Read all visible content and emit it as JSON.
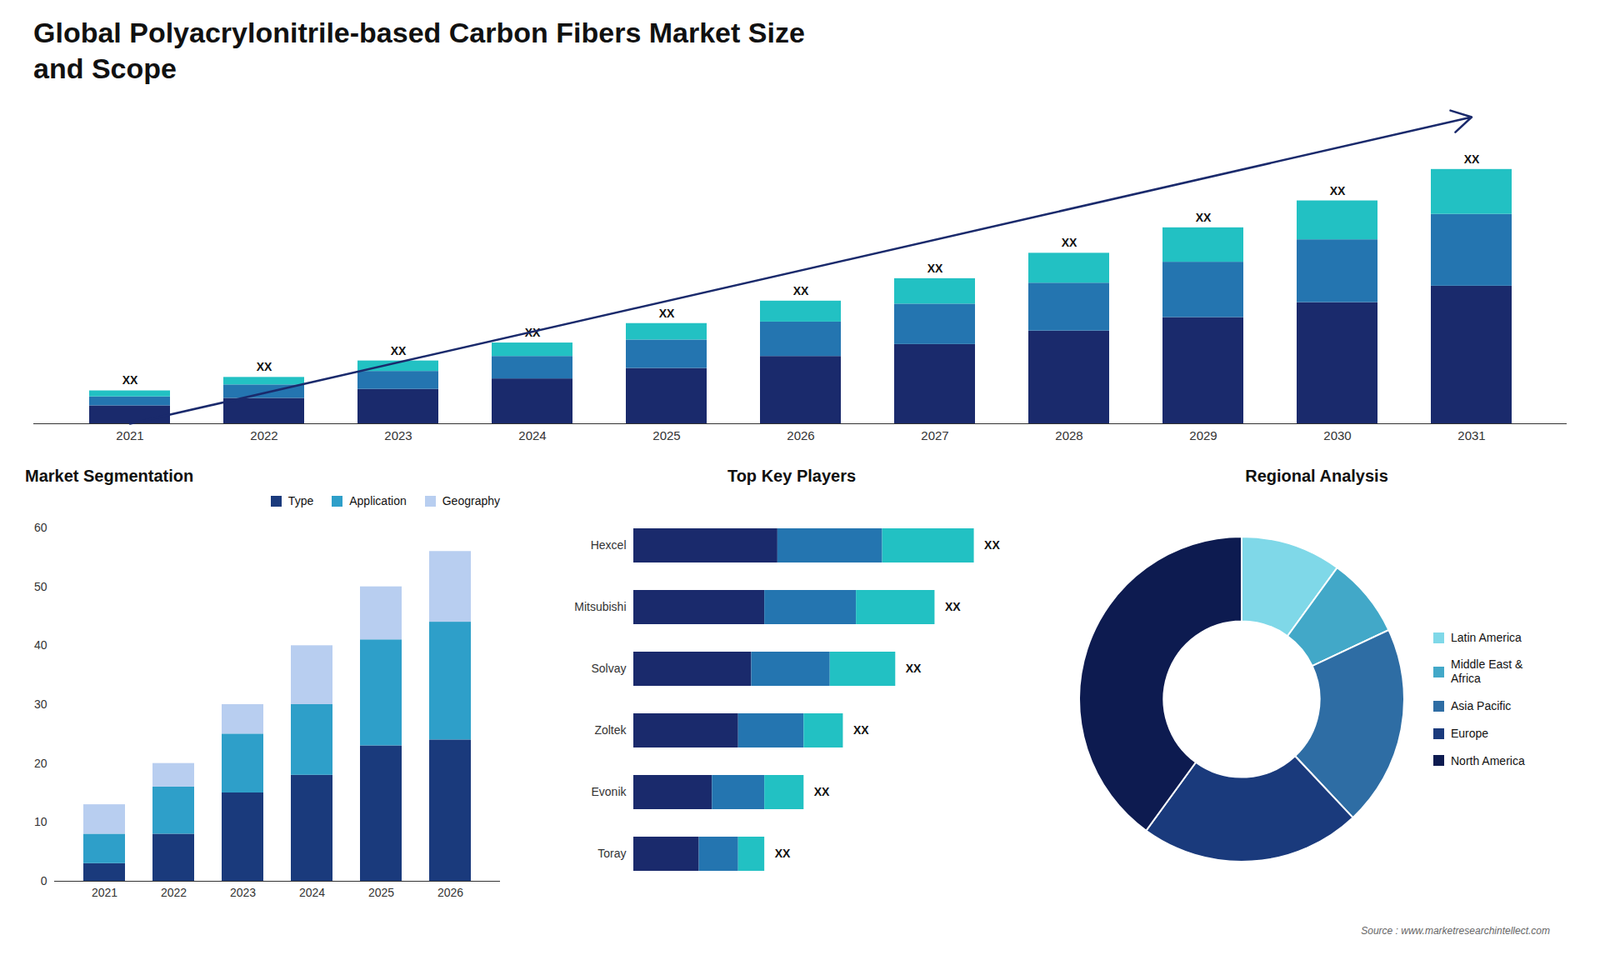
{
  "chart_data": [
    {
      "type": "bar",
      "title": "Global Polyacrylonitrile-based Carbon Fibers Market Size\nand Scope",
      "stacked": true,
      "categories": [
        "2021",
        "2022",
        "2023",
        "2024",
        "2025",
        "2026",
        "2027",
        "2028",
        "2029",
        "2030",
        "2031"
      ],
      "series": [
        {
          "color": "#1a2a6c",
          "values": [
            1.2,
            1.7,
            2.3,
            3.0,
            3.7,
            4.5,
            5.3,
            6.2,
            7.1,
            8.1,
            9.2
          ]
        },
        {
          "color": "#2475b0",
          "values": [
            0.6,
            0.9,
            1.2,
            1.5,
            1.9,
            2.3,
            2.7,
            3.2,
            3.7,
            4.2,
            4.8
          ]
        },
        {
          "color": "#22c1c3",
          "values": [
            0.4,
            0.5,
            0.7,
            0.9,
            1.1,
            1.4,
            1.7,
            2.0,
            2.3,
            2.6,
            3.0
          ]
        }
      ],
      "ylim": [
        0,
        20.5
      ],
      "tick_labels": "x",
      "grid": false,
      "annotations": [
        {
          "x": "2021",
          "text": "XX"
        },
        {
          "x": "2022",
          "text": "XX"
        },
        {
          "x": "2023",
          "text": "XX"
        },
        {
          "x": "2024",
          "text": "XX"
        },
        {
          "x": "2025",
          "text": "XX"
        },
        {
          "x": "2026",
          "text": "XX"
        },
        {
          "x": "2027",
          "text": "XX"
        },
        {
          "x": "2028",
          "text": "XX"
        },
        {
          "x": "2029",
          "text": "XX"
        },
        {
          "x": "2030",
          "text": "XX"
        },
        {
          "x": "2031",
          "text": "XX"
        },
        {
          "arrow": true,
          "color": "#1a2a6c"
        }
      ]
    },
    {
      "type": "bar",
      "title": "Market Segmentation",
      "stacked": true,
      "categories": [
        "2021",
        "2022",
        "2023",
        "2024",
        "2025",
        "2026"
      ],
      "series": [
        {
          "name": "Type",
          "color": "#1a3a7c",
          "values": [
            3,
            8,
            15,
            18,
            23,
            24
          ]
        },
        {
          "name": "Application",
          "color": "#2e9fc9",
          "values": [
            5,
            8,
            10,
            12,
            18,
            20
          ]
        },
        {
          "name": "Geography",
          "color": "#b8cef0",
          "values": [
            5,
            4,
            5,
            10,
            9,
            12
          ]
        }
      ],
      "ylim": [
        0,
        60
      ],
      "yticks": [
        0,
        10,
        20,
        30,
        40,
        50,
        60
      ],
      "grid": false,
      "legend": "upper right"
    },
    {
      "type": "bar",
      "title": "Top Key Players",
      "orientation": "horizontal",
      "stacked": true,
      "categories": [
        "Hexcel",
        "Mitsubishi",
        "Solvay",
        "Zoltek",
        "Evonik",
        "Toray"
      ],
      "series": [
        {
          "color": "#1a2a6c",
          "values": [
            5.5,
            5.0,
            4.5,
            4.0,
            3.0,
            2.5
          ]
        },
        {
          "color": "#2475b0",
          "values": [
            4.0,
            3.5,
            3.0,
            2.5,
            2.0,
            1.5
          ]
        },
        {
          "color": "#22c1c3",
          "values": [
            3.5,
            3.0,
            2.5,
            1.5,
            1.5,
            1.0
          ]
        }
      ],
      "xlim": [
        0,
        14
      ],
      "tick_labels": "y",
      "grid": false,
      "annotations": [
        {
          "y": "Hexcel",
          "text": "XX"
        },
        {
          "y": "Mitsubishi",
          "text": "XX"
        },
        {
          "y": "Solvay",
          "text": "XX"
        },
        {
          "y": "Zoltek",
          "text": "XX"
        },
        {
          "y": "Evonik",
          "text": "XX"
        },
        {
          "y": "Toray",
          "text": "XX"
        }
      ]
    },
    {
      "type": "pie",
      "title": "Regional Analysis",
      "categories": [
        "Latin America",
        "Middle East &\nAfrica",
        "Asia Pacific",
        "Europe",
        "North America"
      ],
      "values": [
        10,
        8,
        20,
        22,
        40
      ],
      "colors": [
        "#7fd8e8",
        "#42a8c8",
        "#2e6da4",
        "#1a3a7c",
        "#0d1b50"
      ],
      "legend": "right",
      "annotations": [
        {
          "text": "Source : www.marketresearchintellect.com"
        }
      ]
    }
  ]
}
